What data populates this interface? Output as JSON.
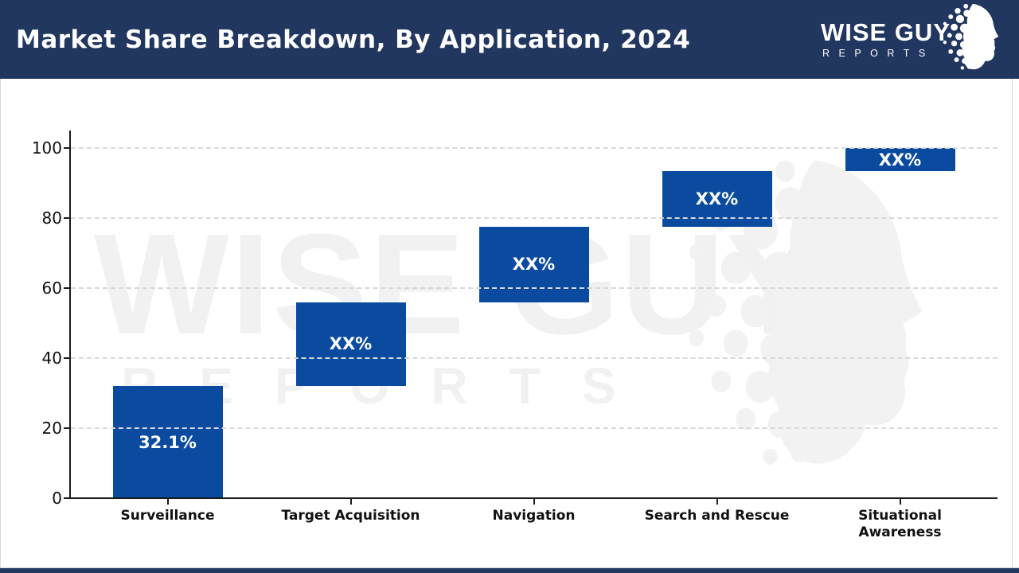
{
  "header": {
    "title": "Market Share Breakdown, By Application, 2024",
    "logo": {
      "primary": "WISE GUY",
      "secondary": "REPORTS"
    }
  },
  "watermark": {
    "primary": "WISE GUY",
    "secondary": "REPORTS"
  },
  "chart_data": {
    "type": "bar",
    "subtype": "waterfall",
    "title": "Market Share Breakdown, By Application, 2024",
    "categories": [
      "Surveillance",
      "Target Acquisition",
      "Navigation",
      "Search and Rescue",
      "Situational Awareness"
    ],
    "tick_labels": [
      "Surveillance",
      "Target Acquisition",
      "Navigation",
      "Search and Rescue",
      "Situational\nAwareness"
    ],
    "segments": [
      {
        "category": "Surveillance",
        "start": 0,
        "end": 32.1,
        "label": "32.1%"
      },
      {
        "category": "Target Acquisition",
        "start": 32.1,
        "end": 56.1,
        "label": "XX%"
      },
      {
        "category": "Navigation",
        "start": 56.1,
        "end": 77.5,
        "label": "XX%"
      },
      {
        "category": "Search and Rescue",
        "start": 77.5,
        "end": 93.4,
        "label": "XX%"
      },
      {
        "category": "Situational Awareness",
        "start": 93.4,
        "end": 100.0,
        "label": "XX%"
      }
    ],
    "yticks": [
      0,
      20,
      40,
      60,
      80,
      100
    ],
    "ylim": [
      0,
      105
    ],
    "xlabel": "",
    "ylabel": "",
    "grid": "horizontal-dashed",
    "legend": "none",
    "bar_color": "#0b4b9f",
    "bar_label_color": "#ffffff"
  },
  "colors": {
    "header_bg": "#22375f",
    "footer_bg": "#22375f",
    "bar": "#0b4b9f",
    "grid": "#d8d8d8",
    "axis": "#1a1a1a",
    "watermark": "#f1f1f1"
  }
}
